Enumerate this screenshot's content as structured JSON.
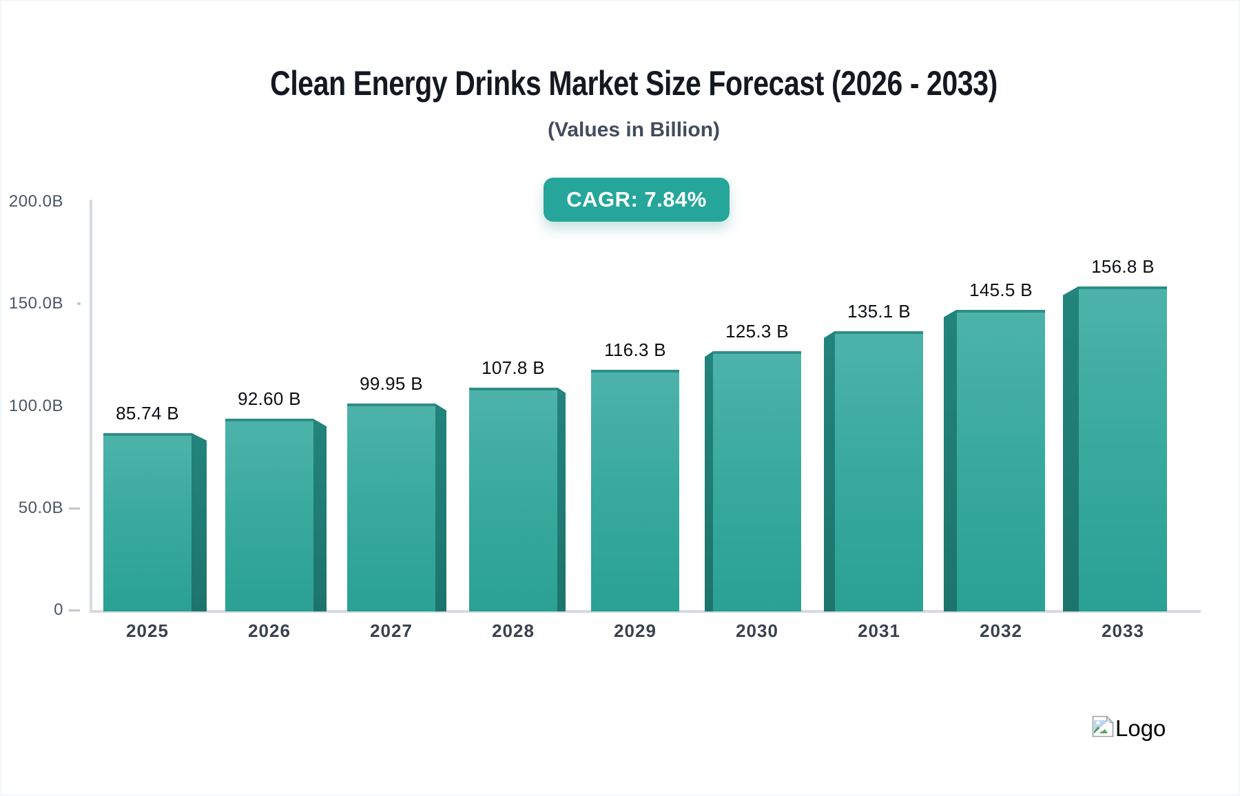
{
  "header": {
    "title": "Clean Energy Drinks Market Size Forecast (2026 - 2033)",
    "subtitle": "(Values in Billion)",
    "cagr_badge": "CAGR: 7.84%"
  },
  "colors": {
    "accent_teal": "#26a69a",
    "badge_text": "#ffffff",
    "bar_face_top": "#4db3aa",
    "bar_face_bottom": "#2aa194",
    "bar_top_edge": "#2e8e85",
    "bar_side": "#1f7a71",
    "axis_line": "#d7dae0",
    "tick_mark": "#c2c6ce",
    "axis_label": "#4c5565",
    "year_label": "#39424f",
    "value_label": "#0c0f13",
    "title": "#141820",
    "subtitle": "#424c5d"
  },
  "chart_data": {
    "type": "bar",
    "title": "Clean Energy Drinks Market Size Forecast (2026 - 2033)",
    "subtitle": "(Values in Billion)",
    "annotation": "CAGR: 7.84%",
    "unit": "Billion",
    "categories": [
      "2025",
      "2026",
      "2027",
      "2028",
      "2029",
      "2030",
      "2031",
      "2032",
      "2033"
    ],
    "values": [
      85.74,
      92.6,
      99.95,
      107.8,
      116.3,
      125.3,
      135.1,
      145.5,
      156.8
    ],
    "value_labels": [
      "85.74 B",
      "92.60 B",
      "99.95 B",
      "107.8 B",
      "116.3 B",
      "125.3 B",
      "135.1 B",
      "145.5 B",
      "156.8 B"
    ],
    "ylim": [
      0,
      200
    ],
    "y_ticks": [
      {
        "label": "200.0B",
        "value": 200,
        "mark": "none"
      },
      {
        "label": "150.0B",
        "value": 150,
        "mark": "dot"
      },
      {
        "label": "100.0B",
        "value": 100,
        "mark": "none"
      },
      {
        "label": "50.0B",
        "value": 50,
        "mark": "dash"
      },
      {
        "label": "0",
        "value": 0,
        "mark": "dash"
      }
    ],
    "grid": false,
    "legend": "none",
    "bar_style": "3d-perspective-teal"
  },
  "footer": {
    "logo_text": "Logo"
  }
}
